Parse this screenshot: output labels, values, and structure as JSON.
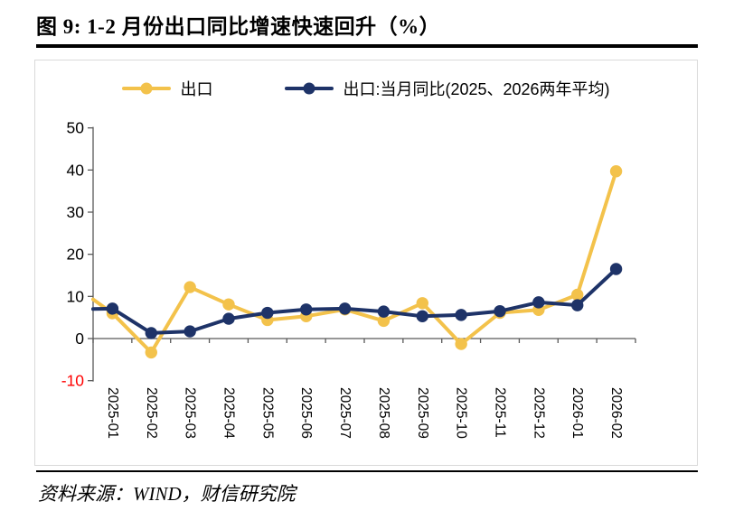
{
  "page": {
    "title": "图 9:  1-2 月份出口同比增速快速回升（%）",
    "footer": "资料来源：WIND，财信研究院"
  },
  "chart_data": {
    "type": "line",
    "title": "图 9: 1-2 月份出口同比增速快速回升（%）",
    "categories": [
      "2025-01",
      "2025-02",
      "2025-03",
      "2025-04",
      "2025-05",
      "2025-06",
      "2025-07",
      "2025-08",
      "2025-09",
      "2025-10",
      "2025-11",
      "2025-12",
      "2026-01",
      "2026-02"
    ],
    "series": [
      {
        "name": "出口",
        "color": "#f3c24b",
        "lead_in_value": 9.3,
        "values": [
          6.0,
          -3.3,
          12.2,
          8.1,
          4.4,
          5.3,
          6.9,
          4.2,
          8.4,
          -1.3,
          6.1,
          6.8,
          10.4,
          39.7
        ]
      },
      {
        "name": "出口:当月同比(2025、2026两年平均)",
        "color": "#1e3368",
        "lead_in_value": 7.0,
        "values": [
          7.1,
          1.3,
          1.7,
          4.7,
          6.1,
          6.9,
          7.1,
          6.4,
          5.3,
          5.6,
          6.5,
          8.6,
          7.9,
          16.5
        ]
      }
    ],
    "xlabel": "",
    "ylabel": "",
    "ylim": [
      -10,
      50
    ],
    "y_ticks": [
      50,
      40,
      30,
      20,
      10,
      0,
      -10
    ],
    "grid": false,
    "legend_position": "top-center",
    "axis_color": "#595959",
    "tick_label_color": "#000000",
    "negative_tick_color": "#ff0000"
  }
}
